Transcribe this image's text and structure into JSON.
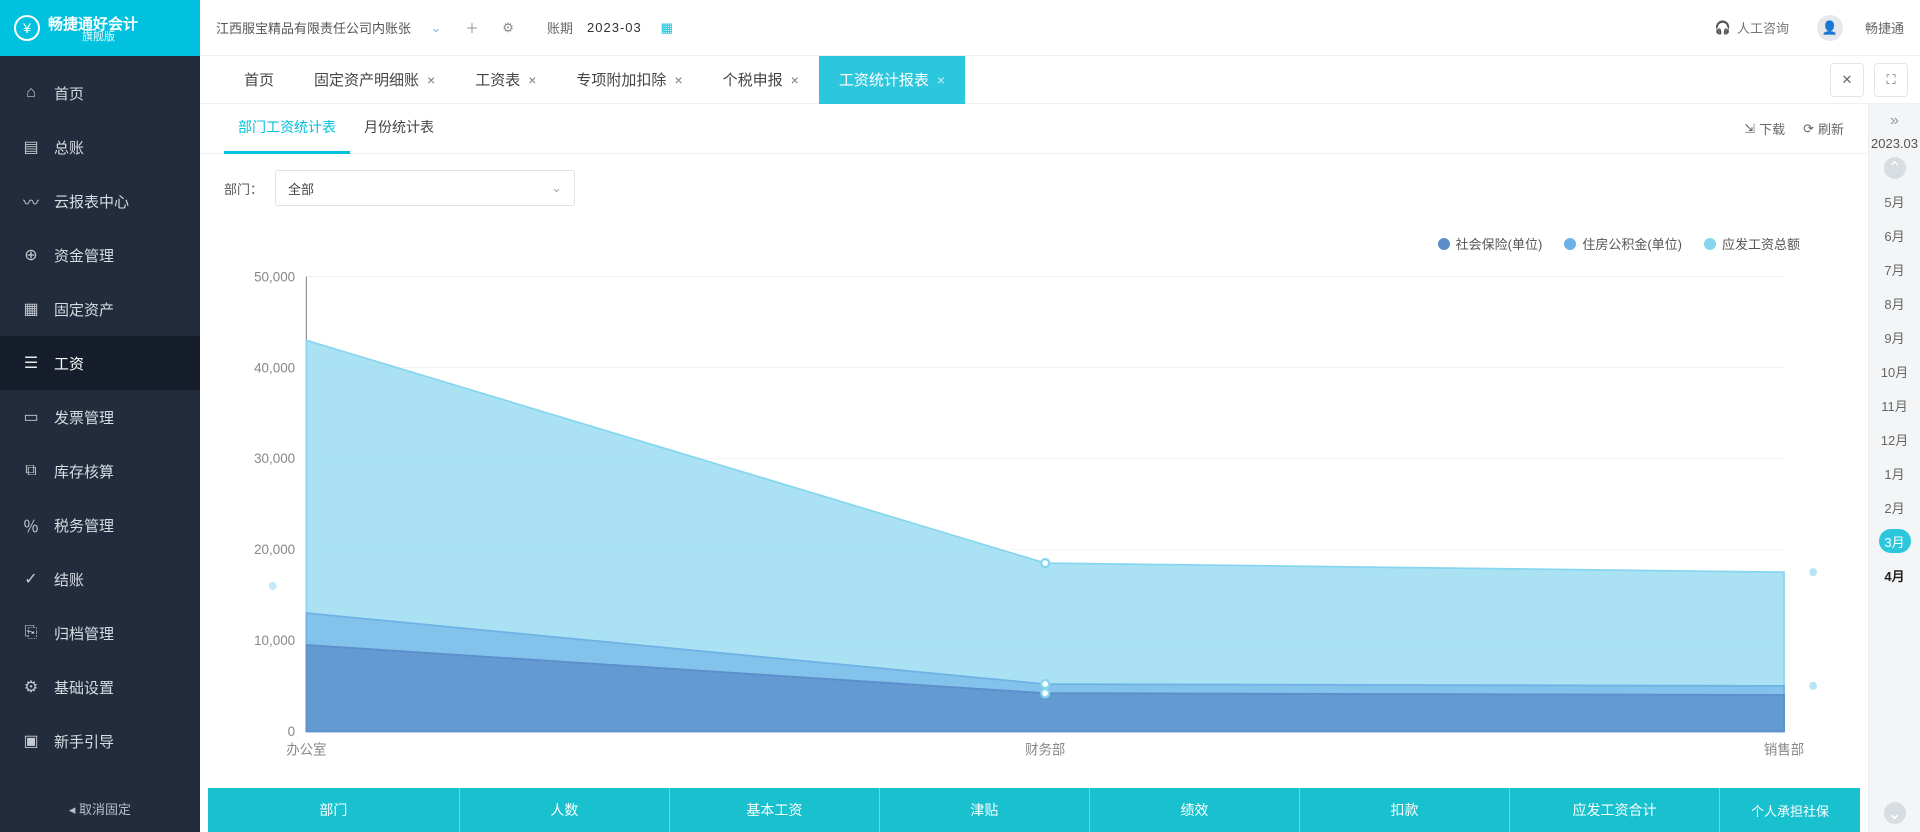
{
  "brand": {
    "name": "畅捷通好会计",
    "edition": "旗舰版"
  },
  "header": {
    "company": "江西服宝精品有限责任公司内账张",
    "period_label": "账期",
    "period_value": "2023-03",
    "consult": "人工咨询",
    "user": "畅捷通"
  },
  "nav": {
    "items": [
      {
        "label": "首页",
        "icon": "⌂"
      },
      {
        "label": "总账",
        "icon": "▤"
      },
      {
        "label": "云报表中心",
        "icon": "〰"
      },
      {
        "label": "资金管理",
        "icon": "⊕"
      },
      {
        "label": "固定资产",
        "icon": "▦"
      },
      {
        "label": "工资",
        "icon": "☰",
        "active": true
      },
      {
        "label": "发票管理",
        "icon": "▭"
      },
      {
        "label": "库存核算",
        "icon": "⧉"
      },
      {
        "label": "税务管理",
        "icon": "％"
      },
      {
        "label": "结账",
        "icon": "✓"
      },
      {
        "label": "归档管理",
        "icon": "⎘"
      },
      {
        "label": "基础设置",
        "icon": "⚙"
      },
      {
        "label": "新手引导",
        "icon": "▣"
      }
    ],
    "footer": "◂ 取消固定"
  },
  "tabs": [
    {
      "label": "首页",
      "closable": false
    },
    {
      "label": "固定资产明细账",
      "closable": true
    },
    {
      "label": "工资表",
      "closable": true
    },
    {
      "label": "专项附加扣除",
      "closable": true
    },
    {
      "label": "个税申报",
      "closable": true
    },
    {
      "label": "工资统计报表",
      "closable": true,
      "active": true
    }
  ],
  "subtabs": {
    "t1": "部门工资统计表",
    "t2": "月份统计表",
    "download": "下载",
    "refresh": "刷新"
  },
  "filter": {
    "label": "部门：",
    "value": "全部"
  },
  "chart": {
    "type": "area",
    "legend": [
      {
        "name": "社会保险(单位)",
        "color": "#5b8ecb"
      },
      {
        "name": "住房公积金(单位)",
        "color": "#6eb1e6"
      },
      {
        "name": "应发工资总额",
        "color": "#86d6ef"
      }
    ],
    "categories": [
      "办公室",
      "财务部",
      "销售部"
    ],
    "y_ticks": [
      0,
      10000,
      20000,
      30000,
      40000,
      50000
    ],
    "y_labels": [
      "0",
      "10,000",
      "20,000",
      "30,000",
      "40,000",
      "50,000"
    ],
    "ylim": [
      0,
      50000
    ],
    "series": {
      "social": [
        9500,
        4200,
        4000
      ],
      "housing": [
        13000,
        5200,
        5000
      ],
      "payable": [
        43000,
        18500,
        17500
      ]
    },
    "colors": {
      "social_fill": "#5b8ecb",
      "social_fill_op": 0.78,
      "housing_fill": "#6eb1e6",
      "housing_fill_op": 0.65,
      "payable_fill": "#86d6ef",
      "payable_fill_op": 0.7,
      "grid": "#e4e8ec",
      "axis": "#888888",
      "background": "#ffffff"
    },
    "marker_radius": 3.5,
    "marker_stroke": "#ffffff",
    "extra_marker_x": 2,
    "extra_markers_color": "#86d6ef"
  },
  "table_header": {
    "cols": [
      "部门",
      "人数",
      "基本工资",
      "津贴",
      "绩效",
      "扣款",
      "应发工资合计"
    ],
    "overflow": "个人承担社保"
  },
  "month_rail": {
    "year_head": "2023.03",
    "year_badge": "2023",
    "months": [
      "5月",
      "6月",
      "7月",
      "8月",
      "9月",
      "10月",
      "11月",
      "12月",
      "1月",
      "2月",
      "3月",
      "4月"
    ],
    "current": "3月",
    "bold": "4月",
    "badge_before": "1月"
  }
}
